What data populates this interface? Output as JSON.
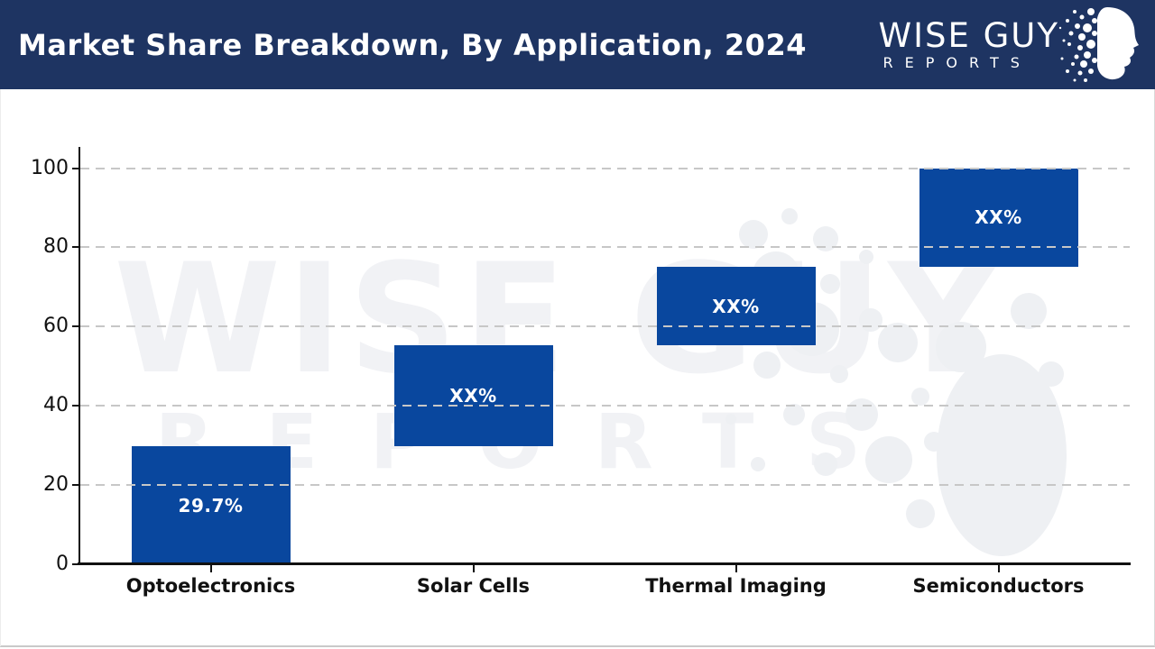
{
  "header": {
    "title": "Market Share Breakdown, By Application, 2024",
    "logo": {
      "name": "WISE GUY",
      "tagline": "REPORTS",
      "face_icon": "dotted-face-profile"
    }
  },
  "watermark": {
    "name": "WISE GUY",
    "tagline": "REPORTS"
  },
  "colors": {
    "header_bg": "#1e3462",
    "bar_fill": "#09479e",
    "grid": "#c7c7c7",
    "axis": "#111111",
    "bar_label_text": "#ffffff",
    "watermark": "#f1f2f5"
  },
  "chart_data": {
    "type": "bar",
    "subtype": "waterfall",
    "title": "Market Share Breakdown, By Application, 2024",
    "categories": [
      "Optoelectronics",
      "Solar Cells",
      "Thermal Imaging",
      "Semiconductors"
    ],
    "bars": [
      {
        "category": "Optoelectronics",
        "start": 0,
        "end": 29.7,
        "label": "29.7%"
      },
      {
        "category": "Solar Cells",
        "start": 29.7,
        "end": 55.3,
        "label": "XX%"
      },
      {
        "category": "Thermal Imaging",
        "start": 55.3,
        "end": 75,
        "label": "XX%"
      },
      {
        "category": "Semiconductors",
        "start": 75,
        "end": 100,
        "label": "XX%"
      }
    ],
    "xlabel": "",
    "ylabel": "",
    "ylim": [
      0,
      105
    ],
    "yticks": [
      0,
      20,
      40,
      60,
      80,
      100
    ],
    "grid": "horizontal-dashed",
    "gridline_on_top_of_bars": true,
    "legend": "none",
    "bar_color": "#09479e"
  }
}
